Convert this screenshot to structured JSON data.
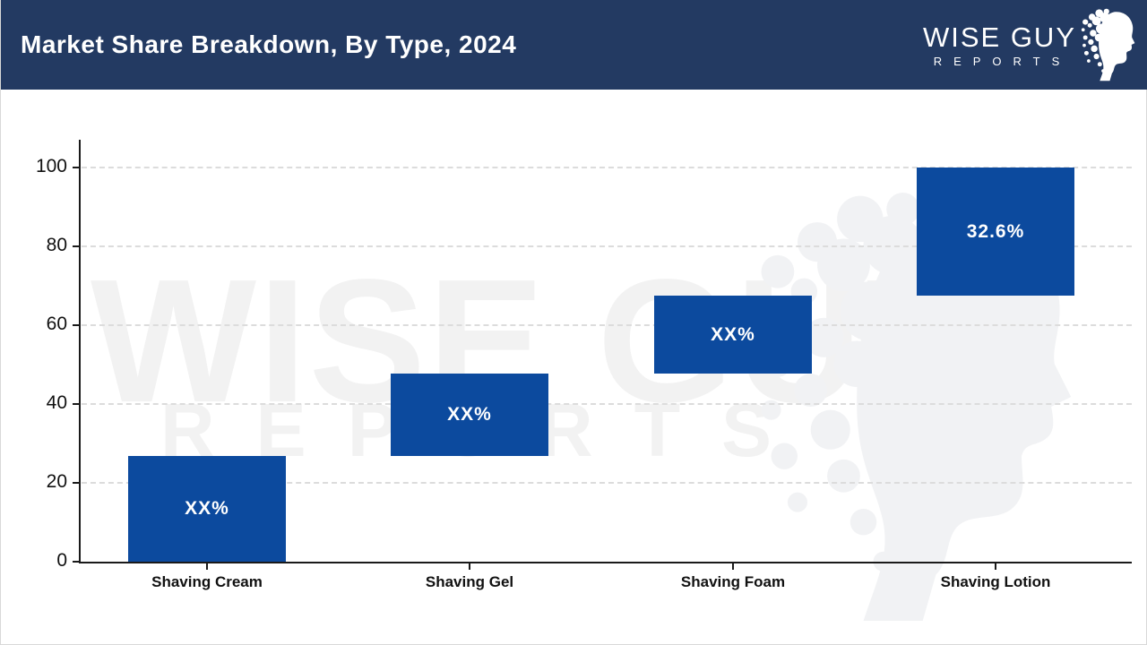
{
  "header": {
    "title": "Market Share Breakdown, By Type, 2024",
    "bg_color": "#233A62",
    "logo": {
      "brand": "WISE GUY",
      "sub": "REPORTS"
    }
  },
  "watermark": {
    "brand": "WISE GUY",
    "sub": "REPORTS"
  },
  "chart_data": {
    "type": "bar",
    "subtype": "floating-waterfall",
    "title": "Market Share Breakdown, By Type, 2024",
    "categories": [
      "Shaving Cream",
      "Shaving Gel",
      "Shaving Foam",
      "Shaving Lotion"
    ],
    "series": [
      {
        "name": "Market Share (%)",
        "segments": [
          {
            "category": "Shaving Cream",
            "start": 0,
            "end": 26.8,
            "label": "XX%"
          },
          {
            "category": "Shaving Gel",
            "start": 26.8,
            "end": 47.7,
            "label": "XX%"
          },
          {
            "category": "Shaving Foam",
            "start": 47.7,
            "end": 67.4,
            "label": "XX%"
          },
          {
            "category": "Shaving Lotion",
            "start": 67.4,
            "end": 100,
            "label": "32.6%"
          }
        ]
      }
    ],
    "xlabel": "",
    "ylabel": "",
    "ylim": [
      0,
      106
    ],
    "yticks": [
      0,
      20,
      40,
      60,
      80,
      100
    ],
    "ytick_labels": [
      "0",
      "20",
      "40",
      "60",
      "80",
      "100"
    ],
    "grid": "horizontal-dashed",
    "legend": "none",
    "bar_color": "#0C4A9E",
    "bar_label_color": "#ffffff",
    "gridline_color": "#dcdcdc",
    "axis_color": "#1a1a1a"
  }
}
